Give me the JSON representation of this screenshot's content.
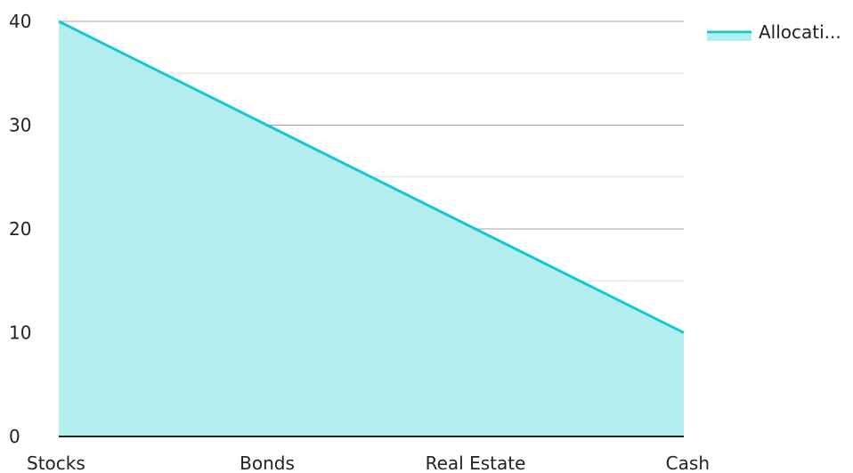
{
  "chart_data": {
    "type": "area",
    "categories": [
      "Stocks",
      "Bonds",
      "Real Estate",
      "Cash"
    ],
    "series": [
      {
        "name": "Allocati...",
        "values": [
          40,
          30,
          20,
          10
        ]
      }
    ],
    "yticks": [
      "0",
      "10",
      "20",
      "30",
      "40"
    ],
    "ylim": [
      0,
      40
    ],
    "minor_gridlines": true,
    "grid": true,
    "legend": "top-right",
    "colors": {
      "line": "#14C8D2",
      "fill": "#B2EEEE",
      "major_grid": "#A0A0A0",
      "minor_grid": "#DDDDDD",
      "axis": "#222222"
    }
  }
}
